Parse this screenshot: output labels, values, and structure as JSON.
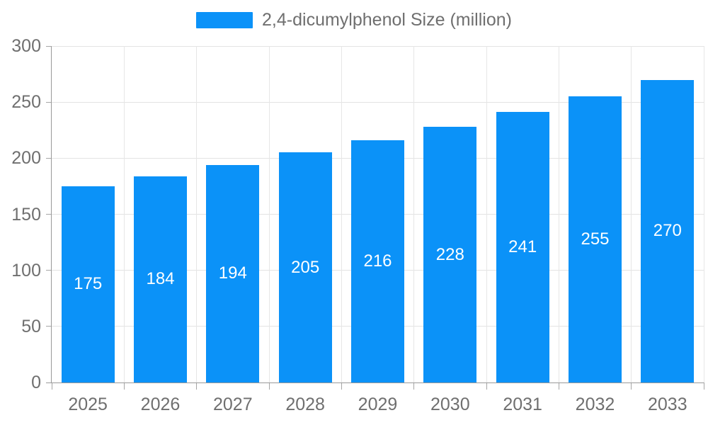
{
  "chart_data": {
    "type": "bar",
    "title": "2,4-dicumylphenol Size (million)",
    "categories": [
      "2025",
      "2026",
      "2027",
      "2028",
      "2029",
      "2030",
      "2031",
      "2032",
      "2033"
    ],
    "series": [
      {
        "name": "2,4-dicumylphenol Size (million)",
        "values": [
          175,
          184,
          194,
          205,
          216,
          228,
          241,
          255,
          270
        ],
        "color": "#0b92f8"
      }
    ],
    "xlabel": "",
    "ylabel": "",
    "ylim": [
      0,
      300
    ],
    "ytick_step": 50,
    "ytick_labels": [
      "0",
      "50",
      "100",
      "150",
      "200",
      "250",
      "300"
    ],
    "grid": true,
    "legend_position": "top",
    "value_label_position": "inside-middle",
    "colors": {
      "bar": "#0b92f8",
      "grid_line": "#e3e3e3",
      "axis_line": "#999999",
      "axis_text": "#6f6f6f",
      "value_label_text": "#ffffff",
      "background": "#ffffff"
    }
  }
}
